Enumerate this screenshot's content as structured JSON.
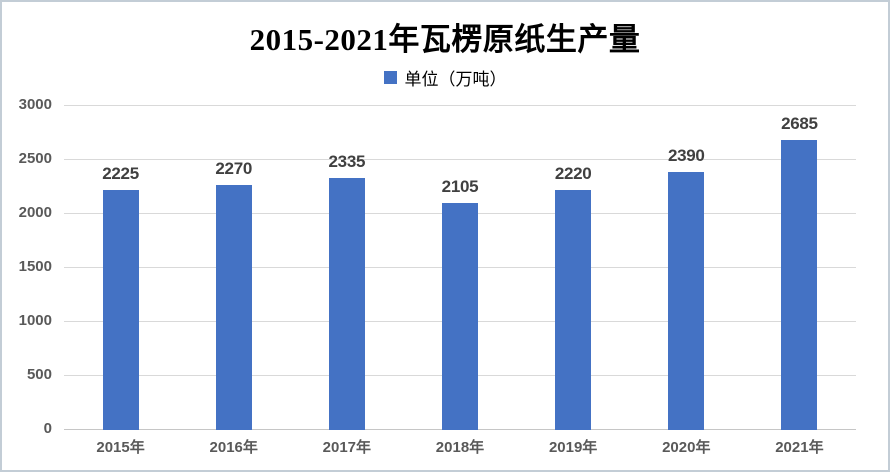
{
  "title": "2015-2021年瓦楞原纸生产量",
  "legend": {
    "label": "单位（万吨）"
  },
  "colors": {
    "bar": "#4472C4",
    "gridline": "#d9d9d9",
    "axis_line": "#c6c6c6",
    "tick_text": "#595959",
    "value_text": "#404040",
    "frame_border": "#c3cdd6"
  },
  "chart_data": {
    "type": "bar",
    "title": "2015-2021年瓦楞原纸生产量",
    "legend_entries": [
      "单位（万吨）"
    ],
    "legend_position": "top-center",
    "categories": [
      "2015年",
      "2016年",
      "2017年",
      "2018年",
      "2019年",
      "2020年",
      "2021年"
    ],
    "values": [
      2225,
      2270,
      2335,
      2105,
      2220,
      2390,
      2685
    ],
    "data_labels_shown": true,
    "xlabel": "",
    "ylabel": "",
    "ylim": [
      0,
      3000
    ],
    "yticks": [
      0,
      500,
      1000,
      1500,
      2000,
      2500,
      3000
    ],
    "grid": true,
    "bar_color": "#4472C4"
  }
}
